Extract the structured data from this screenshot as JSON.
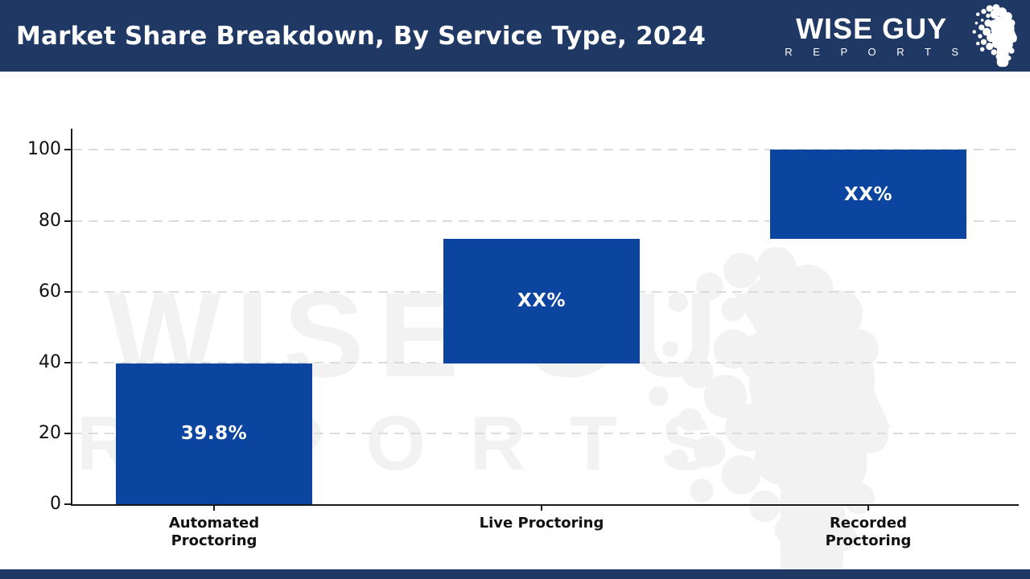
{
  "header": {
    "title": "Market Share Breakdown, By Service Type, 2024",
    "logo": {
      "line1": "WISE GUY",
      "line2": "R E P O R T S"
    }
  },
  "watermark": {
    "line1": "WISE GUY",
    "line2": "R E P O R T S"
  },
  "colors": {
    "header_bg": "#1f3864",
    "header_text": "#ffffff",
    "footer_bg": "#1f3864",
    "bar": "#0b45a0",
    "bar_label": "#ffffff",
    "grid": "#dcdcdc",
    "axis": "#1a1a1a",
    "watermark": "#f2f2f2"
  },
  "chart_data": {
    "type": "bar",
    "subtype": "waterfall",
    "title": "Market Share Breakdown, By Service Type, 2024",
    "categories": [
      "Automated\nProctoring",
      "Live Proctoring",
      "Recorded\nProctoring"
    ],
    "series": [
      {
        "name": "Market Share (%)",
        "segments": [
          {
            "category": "Automated Proctoring",
            "from": 0,
            "to": 39.8,
            "label": "39.8%"
          },
          {
            "category": "Live Proctoring",
            "from": 39.8,
            "to": 75,
            "label": "XX%"
          },
          {
            "category": "Recorded Proctoring",
            "from": 75,
            "to": 100,
            "label": "XX%"
          }
        ]
      }
    ],
    "yticks": [
      0,
      20,
      40,
      60,
      80,
      100
    ],
    "ylim": [
      0,
      106
    ],
    "xlabel": "",
    "ylabel": "",
    "grid": "dashed-horizontal",
    "legend": "none",
    "bar_color": "#0b45a0"
  }
}
